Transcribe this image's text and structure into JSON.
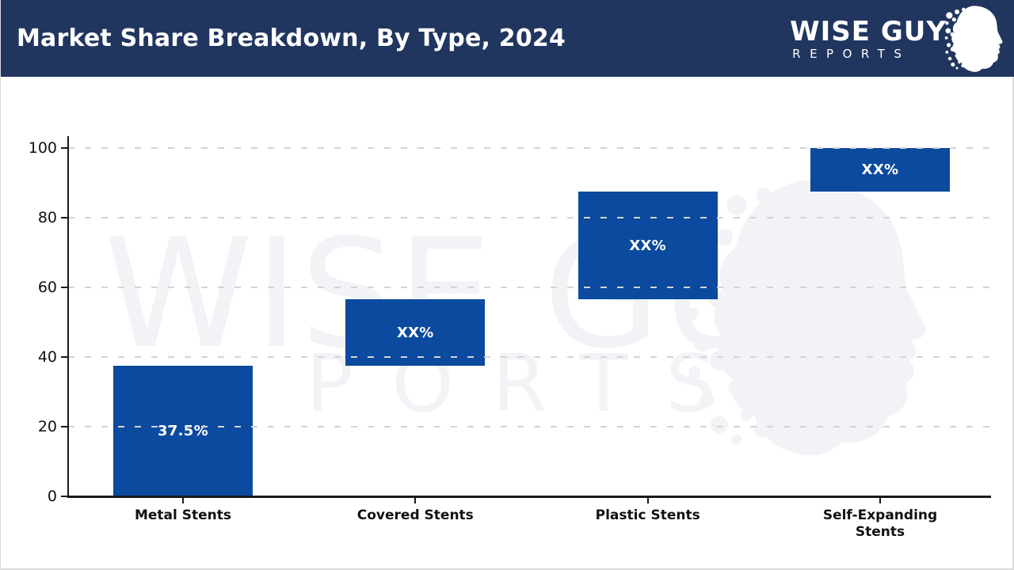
{
  "header": {
    "title": "Market Share Breakdown, By Type, 2024",
    "logo": {
      "line1": "WISE GUY",
      "line2": "REPORTS"
    }
  },
  "watermark": {
    "line1": "WISE GUY",
    "line2": "PORTS"
  },
  "chart_data": {
    "type": "bar",
    "subtype": "waterfall",
    "title": "Market Share Breakdown, By Type, 2024",
    "categories": [
      "Metal Stents",
      "Covered Stents",
      "Plastic Stents",
      "Self-Expanding Stents"
    ],
    "segments": [
      {
        "category": "Metal Stents",
        "start": 0,
        "end": 37.5,
        "label": "37.5%"
      },
      {
        "category": "Covered Stents",
        "start": 37.5,
        "end": 56.5,
        "label": "XX%"
      },
      {
        "category": "Plastic Stents",
        "start": 56.5,
        "end": 87.5,
        "label": "XX%"
      },
      {
        "category": "Self-Expanding Stents",
        "start": 87.5,
        "end": 100,
        "label": "XX%"
      }
    ],
    "ylim": [
      0,
      100
    ],
    "yticks": [
      0,
      20,
      40,
      60,
      80,
      100
    ],
    "grid": "horizontal-dashed",
    "legend": "none",
    "bar_color": "#0b4a9e",
    "bar_label_color": "#ffffff"
  },
  "colors": {
    "header_bg": "#21365f",
    "bar_blue": "#0b4a9e",
    "watermark": "#f2f3f6",
    "gridline": "#d4d4d4",
    "axis": "#1a1a1a"
  }
}
